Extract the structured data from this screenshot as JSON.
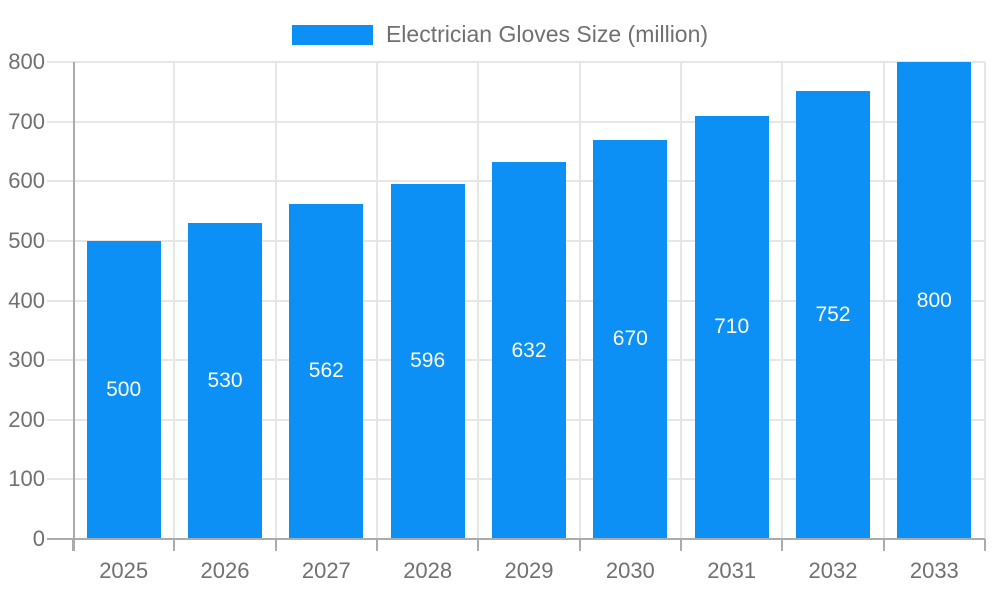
{
  "legend": {
    "label": "Electrician Gloves Size (million)",
    "swatch_color": "#0C90F5"
  },
  "chart_data": {
    "type": "bar",
    "title": "Electrician Gloves Size (million)",
    "series_name": "Electrician Gloves Size (million)",
    "categories": [
      "2025",
      "2026",
      "2027",
      "2028",
      "2029",
      "2030",
      "2031",
      "2032",
      "2033"
    ],
    "values": [
      500,
      530,
      562,
      596,
      632,
      670,
      710,
      752,
      800
    ],
    "xlabel": "",
    "ylabel": "",
    "ylim": [
      0,
      800
    ],
    "yticks": [
      0,
      100,
      200,
      300,
      400,
      500,
      600,
      700,
      800
    ],
    "grid": true,
    "legend_position": "top-center",
    "bar_label_position": "inside-center",
    "colors": {
      "bar": "#0C90F5",
      "bar_label": "#FFFFFF",
      "grid_line": "#E6E6E6",
      "axis_line": "#ABABAB",
      "axis_label": "#707070",
      "background": "#FFFFFF"
    }
  }
}
